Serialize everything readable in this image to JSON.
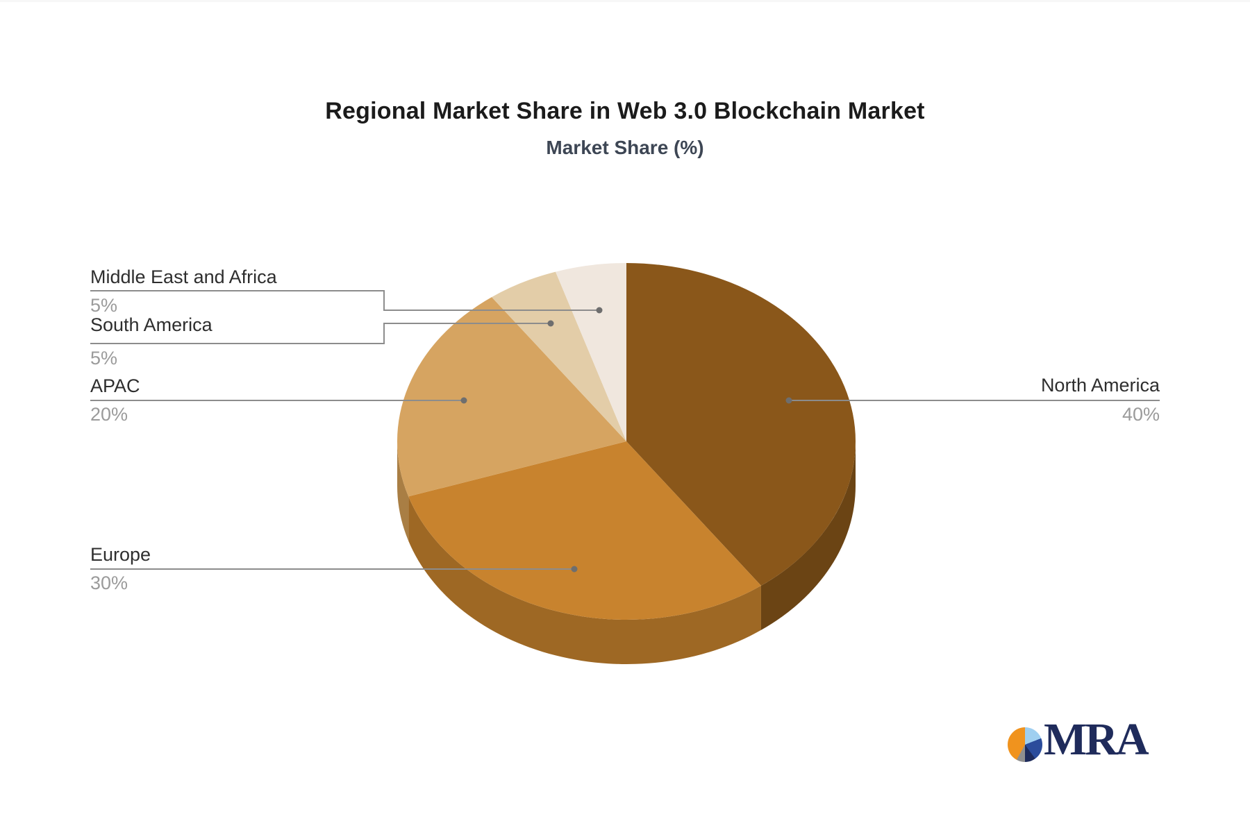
{
  "chart_data": {
    "type": "pie",
    "style": "3d",
    "title": "Regional Market Share in Web 3.0 Blockchain Market",
    "subtitle": "Market Share (%)",
    "unit": "%",
    "direction": "clockwise",
    "start_angle": "12-o-clock",
    "legend_position": "callout-labels",
    "label_color": "#2E2E2E",
    "value_color": "#9B9B9B",
    "leader_line_color": "#8C8C8C",
    "segments": [
      {
        "label": "North America",
        "value": 40,
        "display": "40%",
        "color": "#8A571A",
        "side_color": "#6B4414"
      },
      {
        "label": "Europe",
        "value": 30,
        "display": "30%",
        "color": "#C8832E",
        "side_color": "#9E6824"
      },
      {
        "label": "APAC",
        "value": 20,
        "display": "20%",
        "color": "#D6A461",
        "side_color": "#A97E44"
      },
      {
        "label": "South America",
        "value": 5,
        "display": "5%",
        "color": "#E3CDA8",
        "side_color": "#B7A181"
      },
      {
        "label": "Middle East and Africa",
        "value": 5,
        "display": "5%",
        "color": "#F0E7DE",
        "side_color": "#C2B9AF"
      }
    ]
  },
  "logo": {
    "text": "MRA"
  }
}
